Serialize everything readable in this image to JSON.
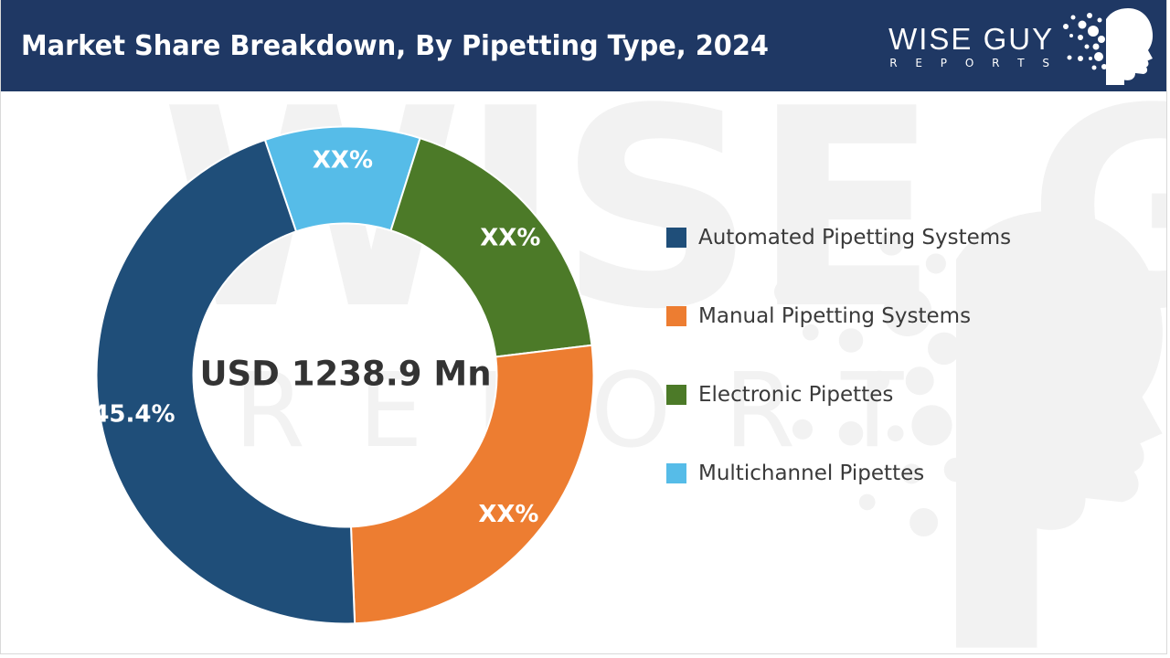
{
  "header": {
    "title": "Market Share Breakdown, By Pipetting Type, 2024",
    "logo": {
      "line1": "WISE GUY",
      "line2": "R E P O R T S"
    }
  },
  "watermark": {
    "line1": "WISE GUY",
    "line2": "REPORTS"
  },
  "chart_data": {
    "type": "pie",
    "donut": true,
    "title": "Market Share Breakdown, By Pipetting Type, 2024",
    "center_label": "USD 1238.9 Mn",
    "legend_position": "right",
    "start_angle_deg": -18.8,
    "clockwise_order": [
      "Multichannel Pipettes",
      "Electronic Pipettes",
      "Manual Pipetting Systems",
      "Automated Pipetting Systems"
    ],
    "segments": [
      {
        "label": "Automated Pipetting Systems",
        "value": 45.4,
        "display": "45.4%",
        "color": "#1f4e79"
      },
      {
        "label": "Manual Pipetting Systems",
        "value": 26.3,
        "display": "XX%",
        "color": "#ed7d31"
      },
      {
        "label": "Electronic Pipettes",
        "value": 18.2,
        "display": "XX%",
        "color": "#4c7a28"
      },
      {
        "label": "Multichannel Pipettes",
        "value": 10.1,
        "display": "XX%",
        "color": "#56bce8"
      }
    ]
  }
}
